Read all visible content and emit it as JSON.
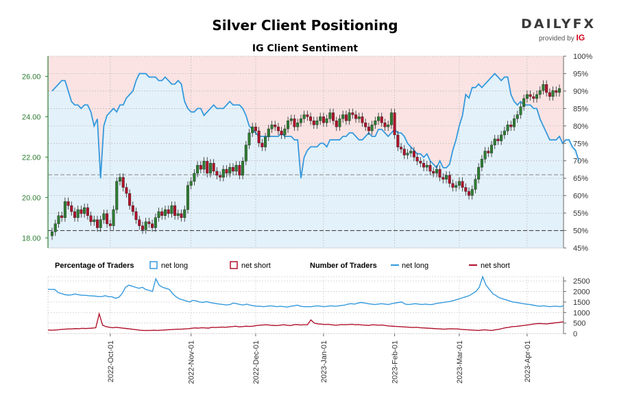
{
  "chart_data": [
    {
      "type": "candlestick+area",
      "title": "Silver Client Positioning",
      "subtitle": "IG Client Sentiment",
      "price_axis": {
        "side": "left",
        "ticks": [
          "18.00",
          "20.00",
          "22.00",
          "24.00",
          "26.00"
        ],
        "range": [
          17.5,
          27.0
        ],
        "color": "#2e7d32"
      },
      "pct_axis": {
        "side": "right",
        "ticks": [
          "45%",
          "50%",
          "55%",
          "60%",
          "65%",
          "70%",
          "75%",
          "80%",
          "85%",
          "90%",
          "95%",
          "100%"
        ],
        "range": [
          45,
          100
        ]
      },
      "x_ticks": [
        "2022-Oct-01",
        "2022-Nov-01",
        "2022-Dec-01",
        "2023-Jan-01",
        "2023-Feb-01",
        "2023-Mar-01",
        "2023-Apr-01"
      ],
      "price_close": [
        18.3,
        18.7,
        19.1,
        19.0,
        19.8,
        19.6,
        19.3,
        19.0,
        19.4,
        19.2,
        19.5,
        19.1,
        18.8,
        18.9,
        18.5,
        18.9,
        19.2,
        18.7,
        18.6,
        19.4,
        20.8,
        21.0,
        20.5,
        20.2,
        19.6,
        19.3,
        18.9,
        18.6,
        18.4,
        18.8,
        18.7,
        18.5,
        19.0,
        19.3,
        19.1,
        19.4,
        19.2,
        19.6,
        19.1,
        19.2,
        19.0,
        19.4,
        20.6,
        20.8,
        21.2,
        21.6,
        21.4,
        21.8,
        21.2,
        21.7,
        21.3,
        21.1,
        21.0,
        21.4,
        21.2,
        21.5,
        21.3,
        21.6,
        21.1,
        21.8,
        22.6,
        23.2,
        23.5,
        23.3,
        22.7,
        22.5,
        23.0,
        23.4,
        23.6,
        23.5,
        23.3,
        23.1,
        23.4,
        23.8,
        23.9,
        23.5,
        23.7,
        23.9,
        24.1,
        24.0,
        23.8,
        23.6,
        23.8,
        24.0,
        23.7,
        23.9,
        24.2,
        23.8,
        23.5,
        23.9,
        24.1,
        23.8,
        24.2,
        24.1,
        23.9,
        24.0,
        23.7,
        23.5,
        23.3,
        23.6,
        23.8,
        24.0,
        23.7,
        23.5,
        23.6,
        24.2,
        23.1,
        22.5,
        22.4,
        22.1,
        22.2,
        22.3,
        22.0,
        21.8,
        21.7,
        21.5,
        21.6,
        21.3,
        21.2,
        21.4,
        21.0,
        20.9,
        21.1,
        20.7,
        20.5,
        20.6,
        20.8,
        20.5,
        20.3,
        20.1,
        20.4,
        20.9,
        21.5,
        21.9,
        22.3,
        22.2,
        22.6,
        22.9,
        22.8,
        23.1,
        23.3,
        23.6,
        23.5,
        23.9,
        24.1,
        24.5,
        24.9,
        25.1,
        25.0,
        24.9,
        25.1,
        25.3,
        25.6,
        25.2,
        25.0,
        25.3,
        25.2,
        25.4
      ],
      "pct_long": [
        90,
        91,
        92,
        93,
        93,
        90,
        87,
        86,
        86,
        85,
        86,
        86,
        84,
        80,
        82,
        65,
        80,
        83,
        84,
        85,
        84,
        86,
        86,
        88,
        89,
        90,
        93,
        95,
        95,
        95,
        94,
        94,
        94,
        93,
        93,
        94,
        93,
        92,
        92,
        93,
        92,
        87,
        85,
        84,
        84,
        85,
        85,
        83,
        84,
        85,
        86,
        85,
        85,
        85,
        86,
        87,
        86,
        86,
        86,
        85,
        83,
        80,
        79,
        78,
        77,
        77,
        77,
        77,
        77,
        77,
        77,
        78,
        77,
        77,
        77,
        76,
        76,
        65,
        71,
        73,
        74,
        74,
        74,
        75,
        75,
        74,
        76,
        76,
        76,
        76,
        77,
        77,
        78,
        78,
        77,
        76,
        76,
        77,
        78,
        77,
        77,
        79,
        79,
        78,
        77,
        78,
        79,
        78,
        78,
        77,
        75,
        74,
        73,
        72,
        72,
        71,
        72,
        70,
        69,
        68,
        70,
        68,
        68,
        69,
        73,
        76,
        80,
        83,
        89,
        88,
        91,
        91,
        92,
        91,
        92,
        93,
        94,
        95,
        94,
        93,
        94,
        94,
        89,
        87,
        86,
        87,
        86,
        86,
        86,
        85,
        85,
        82,
        80,
        78,
        76,
        76,
        76,
        77,
        75,
        76,
        76,
        74,
        73,
        70
      ]
    },
    {
      "type": "line",
      "title": "Number of Traders",
      "y_ticks": [
        "0",
        "500",
        "1000",
        "1500",
        "2000",
        "2500"
      ],
      "ylim": [
        0,
        2700
      ],
      "series": [
        {
          "name": "net long",
          "color": "#3399dd",
          "values": [
            2100,
            2100,
            2100,
            1950,
            1900,
            1850,
            1830,
            1840,
            1880,
            1850,
            1820,
            1820,
            1800,
            1790,
            1780,
            1760,
            1760,
            1800,
            1750,
            1750,
            1680,
            1720,
            1900,
            2200,
            2300,
            2250,
            2200,
            2150,
            2200,
            2100,
            2050,
            2000,
            2600,
            2300,
            2200,
            2150,
            2100,
            1900,
            1750,
            1650,
            1600,
            1550,
            1500,
            1580,
            1550,
            1500,
            1480,
            1520,
            1480,
            1450,
            1420,
            1400,
            1380,
            1360,
            1380,
            1450,
            1420,
            1380,
            1360,
            1400,
            1350,
            1320,
            1300,
            1300,
            1280,
            1300,
            1320,
            1300,
            1280,
            1300,
            1280,
            1260,
            1300,
            1320,
            1350,
            1300,
            1280,
            1280,
            1280,
            1300,
            1320,
            1300,
            1280,
            1300,
            1320,
            1300,
            1310,
            1330,
            1350,
            1400,
            1420,
            1400,
            1450,
            1480,
            1450,
            1420,
            1400,
            1380,
            1400,
            1420,
            1400,
            1380,
            1420,
            1450,
            1480,
            1500,
            1400,
            1380,
            1400,
            1420,
            1400,
            1380,
            1400,
            1380,
            1380,
            1420,
            1450,
            1470,
            1500,
            1520,
            1550,
            1600,
            1650,
            1700,
            1750,
            1800,
            1900,
            2000,
            2200,
            2700,
            2300,
            2100,
            1900,
            1800,
            1700,
            1650,
            1600,
            1550,
            1500,
            1480,
            1450,
            1420,
            1400,
            1380,
            1350,
            1320,
            1300,
            1320,
            1300,
            1280,
            1300,
            1300,
            1280,
            1320
          ]
        },
        {
          "name": "net short",
          "color": "#b0102a",
          "values": [
            170,
            160,
            170,
            180,
            200,
            210,
            220,
            220,
            240,
            230,
            250,
            240,
            250,
            260,
            280,
            940,
            400,
            330,
            300,
            280,
            300,
            280,
            260,
            240,
            220,
            200,
            180,
            160,
            150,
            150,
            150,
            160,
            150,
            160,
            170,
            180,
            190,
            200,
            210,
            210,
            220,
            230,
            250,
            270,
            260,
            280,
            270,
            260,
            300,
            290,
            300,
            310,
            300,
            320,
            330,
            350,
            320,
            330,
            350,
            340,
            350,
            380,
            400,
            410,
            420,
            400,
            390,
            380,
            400,
            420,
            400,
            380,
            420,
            430,
            410,
            420,
            420,
            650,
            500,
            460,
            450,
            430,
            440,
            420,
            400,
            410,
            430,
            420,
            430,
            440,
            420,
            430,
            410,
            400,
            390,
            420,
            410,
            400,
            410,
            380,
            360,
            350,
            340,
            330,
            320,
            310,
            300,
            290,
            300,
            280,
            270,
            260,
            250,
            240,
            230,
            220,
            210,
            220,
            230,
            220,
            220,
            200,
            190,
            180,
            170,
            160,
            150,
            170,
            180,
            160,
            150,
            180,
            200,
            240,
            280,
            300,
            330,
            340,
            360,
            380,
            400,
            420,
            450,
            470,
            480,
            470,
            460,
            480,
            500,
            520,
            540,
            560
          ]
        }
      ]
    }
  ],
  "legend": {
    "pct_label": "Percentage of Traders",
    "pct_long": "net long",
    "pct_short": "net short",
    "num_label": "Number of Traders",
    "num_long": "net long",
    "num_short": "net short"
  },
  "logo": {
    "main": "DAILYFX",
    "sub": "provided by",
    "ig": "IG"
  },
  "colors": {
    "long_fill": "#e3f1fa",
    "short_fill": "#fbe3e3",
    "long_line": "#3399dd",
    "short_line": "#b0102a",
    "up": "#2e7d32",
    "down": "#b0102a"
  }
}
